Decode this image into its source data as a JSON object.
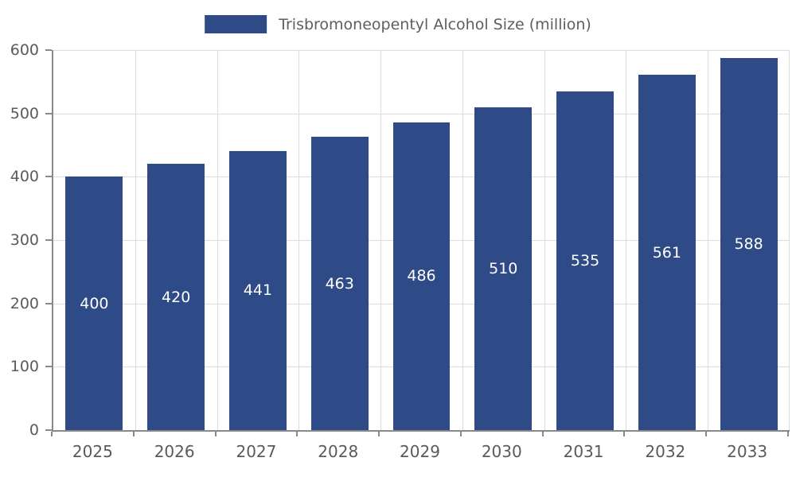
{
  "chart_data": {
    "type": "bar",
    "title": "",
    "legend": "Trisbromoneopentyl Alcohol Size (million)",
    "legend_position": "top",
    "categories": [
      "2025",
      "2026",
      "2027",
      "2028",
      "2029",
      "2030",
      "2031",
      "2032",
      "2033"
    ],
    "values": [
      400,
      420,
      441,
      463,
      486,
      510,
      535,
      561,
      588
    ],
    "xlabel": "",
    "ylabel": "",
    "ylim": [
      0,
      600
    ],
    "yticks": [
      0,
      100,
      200,
      300,
      400,
      500,
      600
    ],
    "grid": true,
    "bar_color": "#2e4a87",
    "bar_label_color": "#ffffff"
  }
}
